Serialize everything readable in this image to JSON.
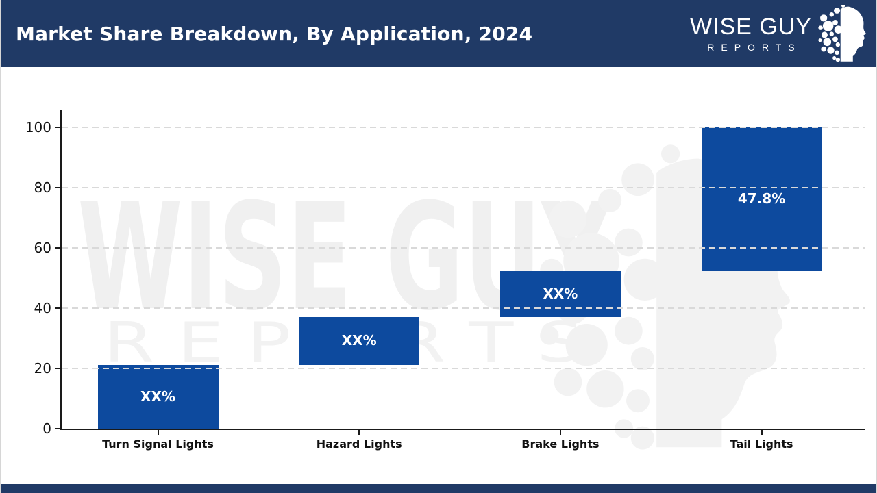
{
  "header": {
    "title": "Market Share Breakdown, By Application, 2024",
    "logo": {
      "line1": "WISE GUY",
      "line2": "REPORTS"
    }
  },
  "watermark": {
    "line1": "WISE GUY",
    "line2": "R E P O R T S"
  },
  "chart_data": {
    "type": "bar",
    "subtype": "waterfall",
    "title": "Market Share Breakdown, By Application, 2024",
    "categories": [
      "Turn Signal Lights",
      "Hazard Lights",
      "Brake Lights",
      "Tail Lights"
    ],
    "segments": [
      {
        "category": "Turn Signal Lights",
        "start": 0,
        "end": 21.1,
        "value_label": "XX%"
      },
      {
        "category": "Hazard Lights",
        "start": 21.1,
        "end": 37.0,
        "value_label": "XX%"
      },
      {
        "category": "Brake Lights",
        "start": 37.0,
        "end": 52.2,
        "value_label": "XX%"
      },
      {
        "category": "Tail Lights",
        "start": 52.2,
        "end": 100,
        "value_label": "47.8%"
      }
    ],
    "yticks": [
      0,
      20,
      40,
      60,
      80,
      100
    ],
    "ylim": [
      0,
      105
    ],
    "xlabel": "",
    "ylabel": "",
    "grid": true,
    "grid_style": "dashed",
    "legend": false,
    "bar_color": "#0d4a9e",
    "label_color": "#ffffff"
  },
  "colors": {
    "header_bg": "#203a66",
    "footer_bg": "#203a66",
    "bar": "#0d4a9e",
    "watermark": "#f0f0f0",
    "grid": "#d9d9d9",
    "axis": "#1a1a1a"
  }
}
